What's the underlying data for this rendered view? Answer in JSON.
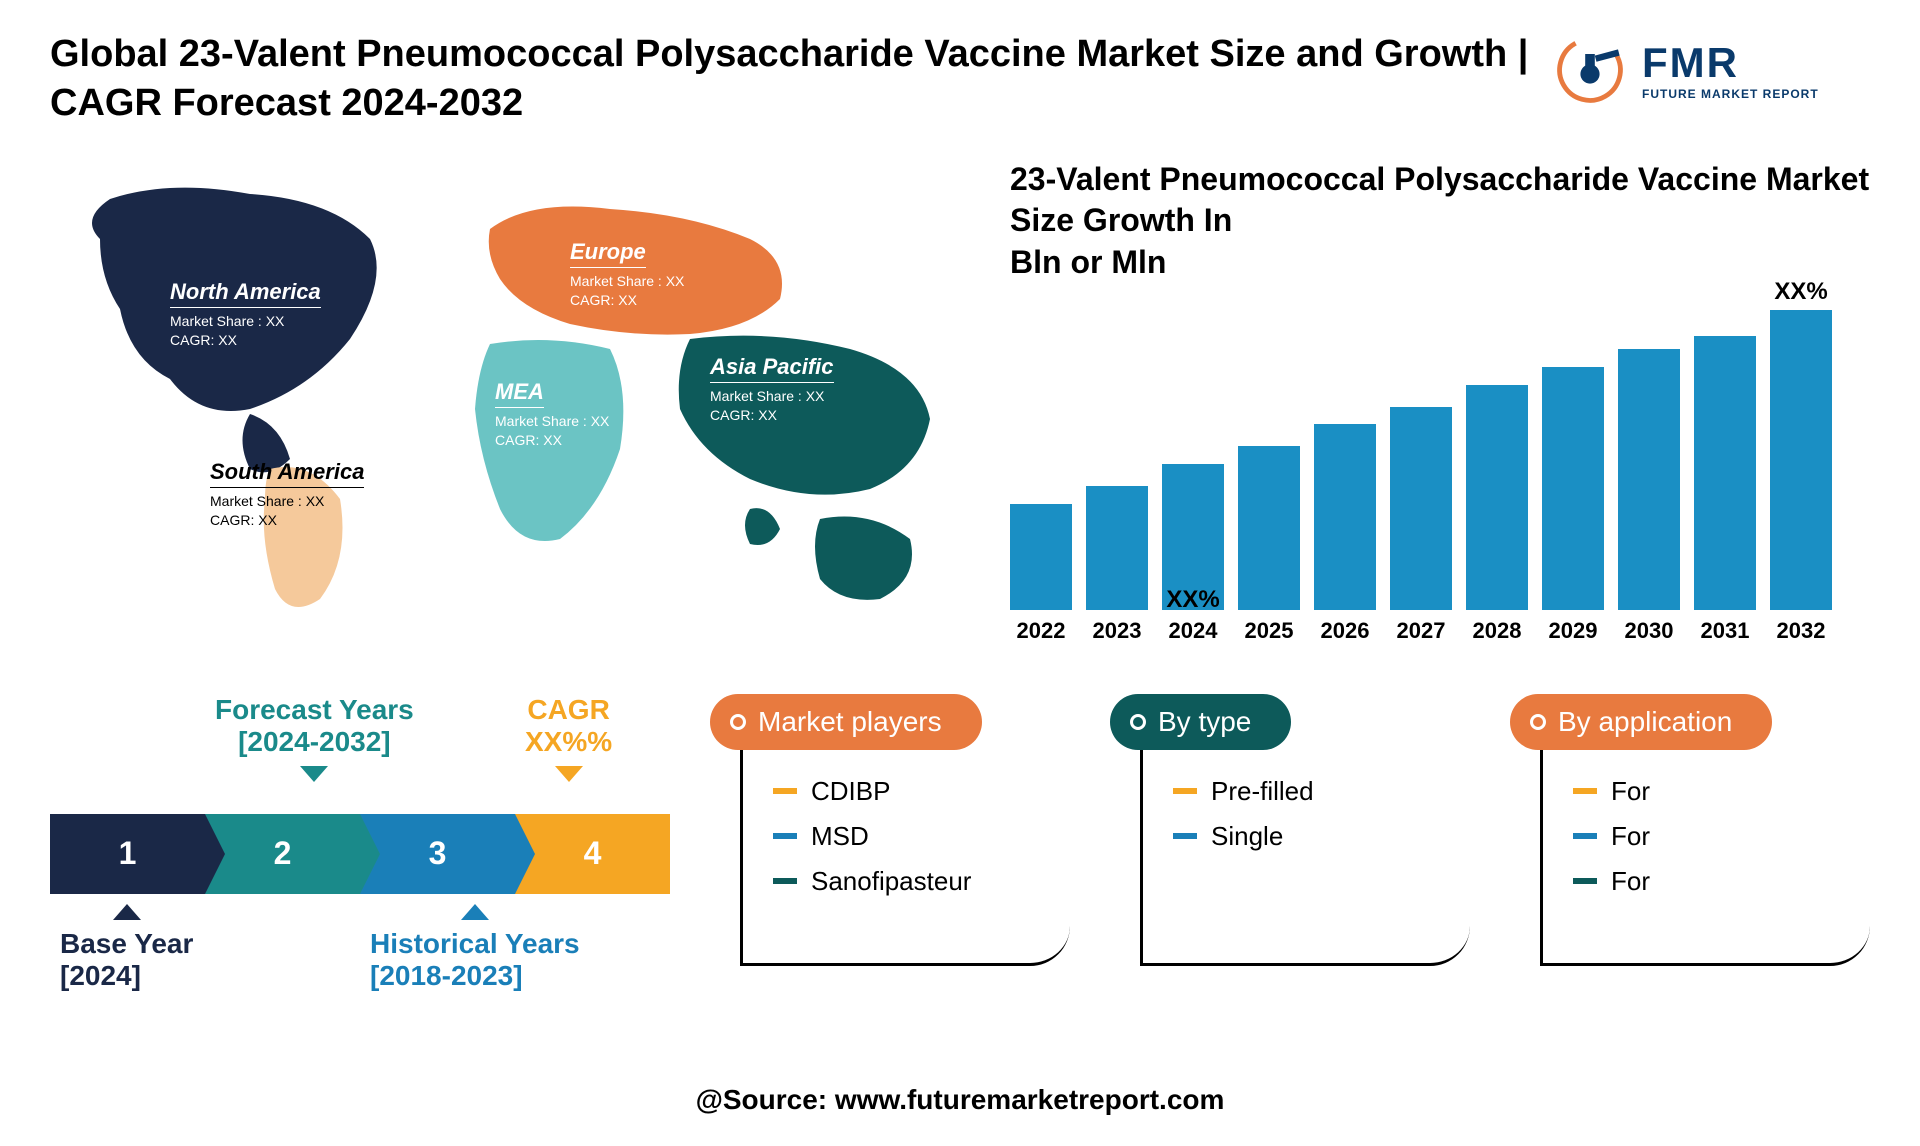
{
  "title": "Global 23-Valent Pneumococcal Polysaccharide Vaccine Market Size and Growth | CAGR Forecast 2024-2032",
  "logo": {
    "main": "FMR",
    "sub": "FUTURE MARKET REPORT"
  },
  "colors": {
    "navy": "#1a2847",
    "orange": "#e87a3f",
    "teal": "#1a8a8a",
    "teal_dark": "#0d5a5a",
    "light_teal": "#6bc4c4",
    "blue": "#1a7fb8",
    "yellow": "#f5a623",
    "bar": "#1a8fc4",
    "text": "#000000"
  },
  "regions": {
    "north_america": {
      "name": "North America",
      "share": "Market Share : XX",
      "cagr": "CAGR: XX",
      "color": "#1a2847"
    },
    "south_america": {
      "name": "South America",
      "share": "Market Share : XX",
      "cagr": "CAGR: XX",
      "color": "#f5c99b"
    },
    "europe": {
      "name": "Europe",
      "share": "Market Share : XX",
      "cagr": "CAGR: XX",
      "color": "#e87a3f"
    },
    "mea": {
      "name": "MEA",
      "share": "Market Share : XX",
      "cagr": "CAGR: XX",
      "color": "#6bc4c4"
    },
    "asia_pacific": {
      "name": "Asia Pacific",
      "share": "Market Share : XX",
      "cagr": "CAGR: XX",
      "color": "#0d5a5a"
    }
  },
  "chart": {
    "title": "23-Valent Pneumococcal Polysaccharide Vaccine Market Size Growth In\nBln or Mln",
    "years": [
      "2022",
      "2023",
      "2024",
      "2025",
      "2026",
      "2027",
      "2028",
      "2029",
      "2030",
      "2031",
      "2032"
    ],
    "values": [
      120,
      140,
      165,
      185,
      210,
      230,
      255,
      275,
      295,
      310,
      340
    ],
    "max": 340,
    "bar_color": "#1a8fc4",
    "annotations": [
      {
        "index": 2,
        "text": "XX%"
      },
      {
        "index": 10,
        "text": "XX%"
      }
    ]
  },
  "timeline": {
    "segments": [
      {
        "num": "1",
        "color": "#1a2847"
      },
      {
        "num": "2",
        "color": "#1a8a8a"
      },
      {
        "num": "3",
        "color": "#1a7fb8"
      },
      {
        "num": "4",
        "color": "#f5a623"
      }
    ],
    "labels": {
      "base": {
        "title": "Base Year",
        "sub": "[2024]",
        "color": "#1a2847",
        "seg": 0,
        "pos": "below"
      },
      "forecast": {
        "title": "Forecast Years",
        "sub": "[2024-2032]",
        "color": "#1a8a8a",
        "seg": 1,
        "pos": "above"
      },
      "historical": {
        "title": "Historical Years",
        "sub": "[2018-2023]",
        "color": "#1a7fb8",
        "seg": 2,
        "pos": "below"
      },
      "cagr": {
        "title": "CAGR",
        "sub": "XX%%",
        "color": "#f5a623",
        "seg": 3,
        "pos": "above"
      }
    }
  },
  "categories": [
    {
      "header": "Market players",
      "header_color": "#e87a3f",
      "items": [
        {
          "text": "CDIBP",
          "color": "#f5a623"
        },
        {
          "text": "MSD",
          "color": "#1a7fb8"
        },
        {
          "text": "Sanofipasteur",
          "color": "#0d5a5a"
        }
      ]
    },
    {
      "header": "By type",
      "header_color": "#0d5a5a",
      "items": [
        {
          "text": "Pre-filled",
          "color": "#f5a623"
        },
        {
          "text": "Single",
          "color": "#1a7fb8"
        }
      ]
    },
    {
      "header": "By application",
      "header_color": "#e87a3f",
      "items": [
        {
          "text": "For",
          "color": "#f5a623"
        },
        {
          "text": "For",
          "color": "#1a7fb8"
        },
        {
          "text": "For",
          "color": "#0d5a5a"
        }
      ]
    }
  ],
  "source": "@Source: www.futuremarketreport.com"
}
